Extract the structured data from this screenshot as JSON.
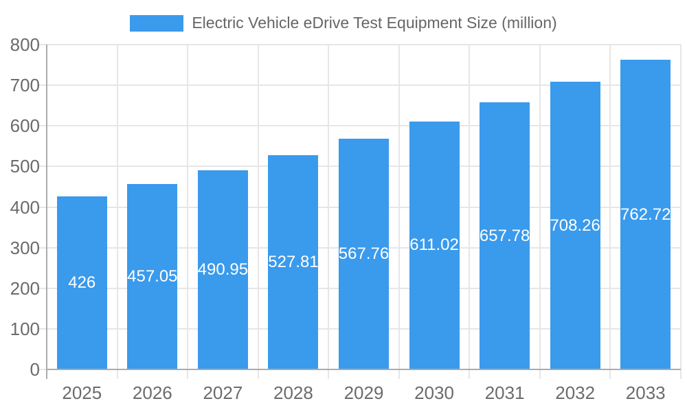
{
  "chart_data": {
    "type": "bar",
    "legend": "Electric Vehicle eDrive Test Equipment Size (million)",
    "categories": [
      "2025",
      "2026",
      "2027",
      "2028",
      "2029",
      "2030",
      "2031",
      "2032",
      "2033"
    ],
    "values": [
      426,
      457.05,
      490.95,
      527.81,
      567.76,
      611.02,
      657.78,
      708.26,
      762.72
    ],
    "value_labels": [
      "426",
      "457.05",
      "490.95",
      "527.81",
      "567.76",
      "611.02",
      "657.78",
      "708.26",
      "762.72"
    ],
    "ylim": [
      0,
      800
    ],
    "ytick_step": 100,
    "ytick_labels": [
      "0",
      "100",
      "200",
      "300",
      "400",
      "500",
      "600",
      "700",
      "800"
    ],
    "xlabel": "",
    "ylabel": "",
    "grid": true,
    "legend_position": "top-center",
    "value_label_position": "inside-center",
    "colors": {
      "bar": "#3A9AEC",
      "grid": "#e6e6e6",
      "axis": "#ababab",
      "tick_text": "#6b6b6b",
      "legend_text": "#666666",
      "value_label_text": "#ffffff",
      "background": "#ffffff"
    }
  }
}
